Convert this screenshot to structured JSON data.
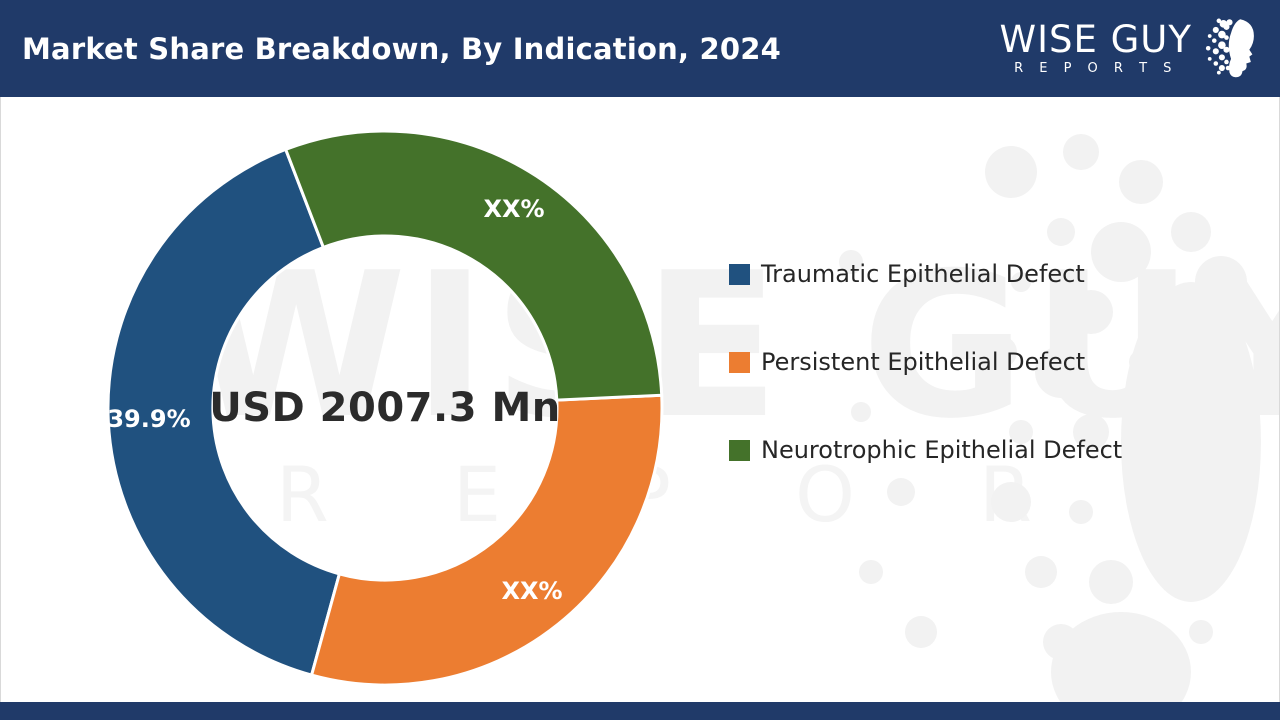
{
  "header": {
    "title": "Market Share Breakdown, By Indication, 2024",
    "logo": {
      "brand": "WISE GUY",
      "tagline": "R E P O R T S"
    },
    "bg_color": "#203a69",
    "text_color": "#ffffff"
  },
  "chart_data": {
    "type": "pie",
    "variant": "donut",
    "title": "Market Share Breakdown, By Indication, 2024",
    "center_label": "USD 2007.3 Mn",
    "start_angle_deg": 111,
    "direction": "counterclockwise",
    "inner_radius_ratio": 0.62,
    "legend_position": "right",
    "grid": false,
    "slices": [
      {
        "name": "Traumatic Epithelial Defect",
        "value_pct": 39.9,
        "label": "39.9%",
        "color": "#20517f"
      },
      {
        "name": "Persistent Epithelial Defect",
        "value_pct": 30.0,
        "label": "XX%",
        "color": "#ec7d31"
      },
      {
        "name": "Neurotrophic Epithelial Defect",
        "value_pct": 30.1,
        "label": "XX%",
        "color": "#44722a"
      }
    ]
  },
  "watermark": {
    "line1": "WISE GUY",
    "line2": "R E P O R T S"
  },
  "footer": {
    "bg_color": "#203a69"
  }
}
